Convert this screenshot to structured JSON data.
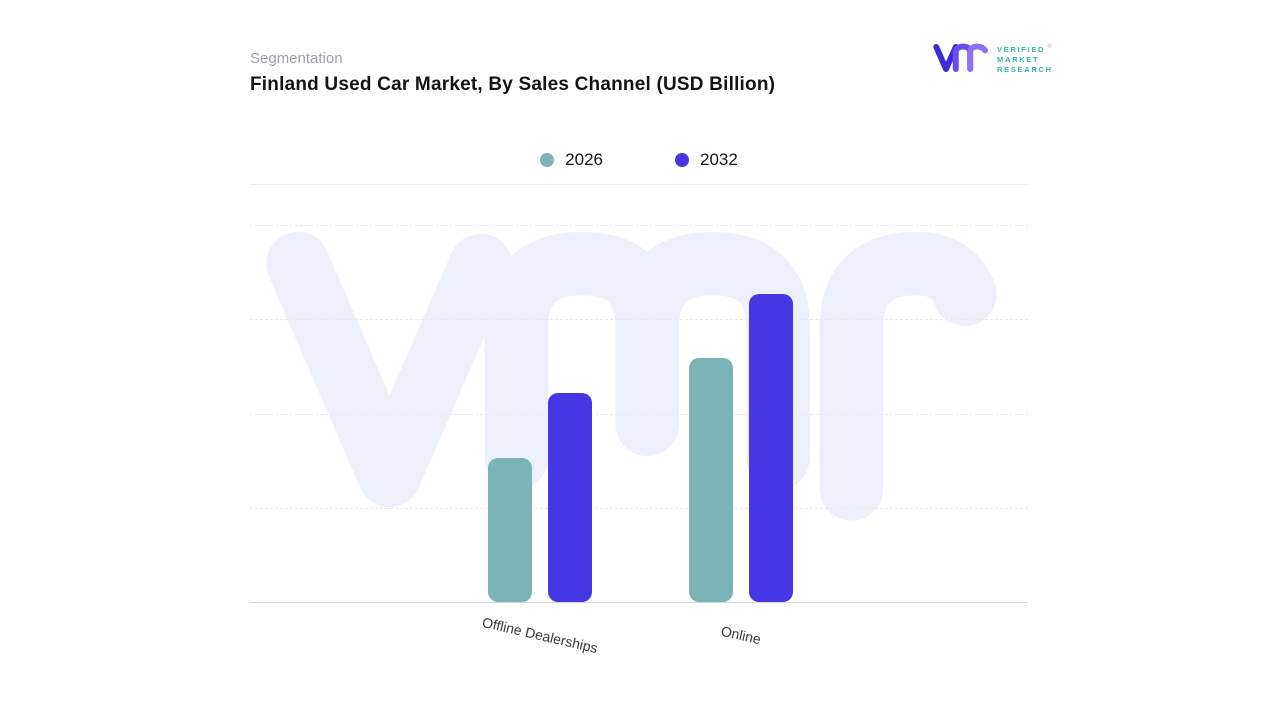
{
  "header": {
    "eyebrow": "Segmentation",
    "title": "Finland Used Car Market, By Sales Channel (USD Billion)"
  },
  "logo": {
    "lines": [
      "VERIFIED",
      "MARKET",
      "RESEARCH"
    ],
    "registered_mark": "®",
    "text_color": "#35b2af",
    "mark_colors": [
      "#3e2bd8",
      "#6a4cf2",
      "#8e6ff6"
    ]
  },
  "legend": {
    "items": [
      {
        "label": "2026",
        "color": "#7cb4b6"
      },
      {
        "label": "2032",
        "color": "#4636e4"
      }
    ]
  },
  "chart_data": {
    "type": "bar",
    "title": "Finland Used Car Market, By Sales Channel (USD Billion)",
    "categories": [
      "Offline Dealerships",
      "Online"
    ],
    "series": [
      {
        "name": "2026",
        "color": "#7cb4b6",
        "values": [
          1.45,
          2.45
        ]
      },
      {
        "name": "2032",
        "color": "#4636e4",
        "values": [
          2.1,
          3.1
        ]
      }
    ],
    "xlabel": "",
    "ylabel": "",
    "ylim": [
      0,
      3.8
    ],
    "y_axis_labels_visible": false,
    "value_labels_visible": false,
    "gridlines": "dashed-horizontal",
    "legend_position": "top-center",
    "watermark_text": "VMr"
  }
}
